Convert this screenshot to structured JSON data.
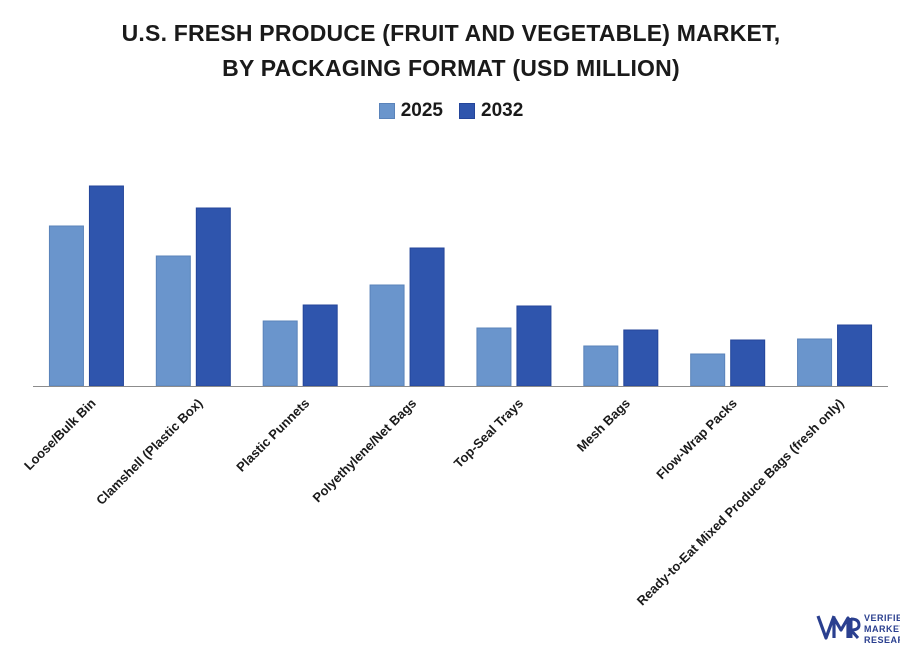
{
  "chart_data": {
    "type": "bar",
    "title_line1": "U.S. FRESH PRODUCE (FRUIT AND VEGETABLE) MARKET,",
    "title_line2": "BY PACKAGING FORMAT (USD MILLION)",
    "categories": [
      "Loose/Bulk Bin",
      "Clamshell (Plastic Box)",
      "Plastic Punnets",
      "Polyethylene/Net Bags",
      "Top-Seal Trays",
      "Mesh Bags",
      "Flow-Wrap Packs",
      "Ready-to-Eat Mixed Produce Bags (fresh only)"
    ],
    "series": [
      {
        "name": "2025",
        "color": "#6a95cc",
        "values": [
          160,
          130,
          65,
          101,
          58,
          40,
          32,
          47
        ]
      },
      {
        "name": "2032",
        "color": "#2f55ad",
        "values": [
          200,
          178,
          81,
          138,
          80,
          56,
          46,
          61
        ]
      }
    ],
    "ylim": [
      0,
      220
    ],
    "grid": false,
    "legend_position": "top-center",
    "xlabel": "",
    "ylabel": ""
  },
  "branding": {
    "logo_line1": "VERIFIED",
    "logo_line2": "MARKET",
    "logo_line3": "RESEARCH",
    "logo_mark": "VMR",
    "logo_color": "#2a3f8f"
  }
}
